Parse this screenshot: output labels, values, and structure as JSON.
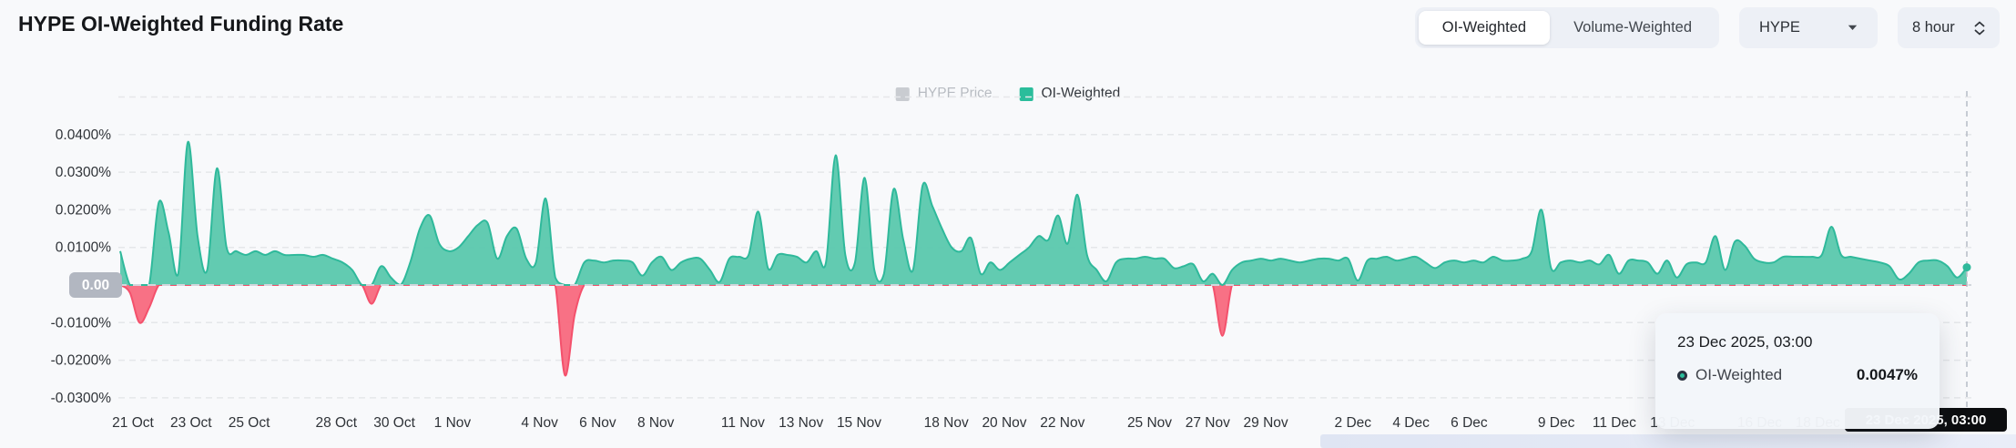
{
  "header": {
    "title": "HYPE OI-Weighted Funding Rate"
  },
  "controls": {
    "mode_tabs": [
      {
        "label": "OI-Weighted",
        "active": true
      },
      {
        "label": "Volume-Weighted",
        "active": false
      }
    ],
    "asset_select": {
      "value": "HYPE"
    },
    "interval_select": {
      "value": "8 hour"
    }
  },
  "legend": [
    {
      "label": "HYPE Price",
      "swatch_color": "#c9ccd1",
      "disabled": true
    },
    {
      "label": "OI-Weighted",
      "swatch_color": "#2abd9b",
      "disabled": false
    }
  ],
  "tooltip": {
    "title": "23 Dec 2025, 03:00",
    "series_label": "OI-Weighted",
    "value": "0.0047%"
  },
  "chart_data": {
    "type": "area",
    "title": "HYPE OI-Weighted Funding Rate",
    "unit": "%",
    "grid": true,
    "legend_position": "top",
    "ylim": [
      -0.035,
      0.052
    ],
    "zero_badge": "0.00",
    "crosshair": {
      "x_label": "23 Dec 2025, 03:00",
      "value": 0.0047
    },
    "x_range": {
      "start": "21 Oct 2025",
      "end": "23 Dec 2025, 03:00",
      "interval": "8 hour"
    },
    "y_ticks": [
      {
        "label": "",
        "value": 0.05
      },
      {
        "label": "0.0400%",
        "value": 0.04
      },
      {
        "label": "0.0300%",
        "value": 0.03
      },
      {
        "label": "0.0200%",
        "value": 0.02
      },
      {
        "label": "0.0100%",
        "value": 0.01
      },
      {
        "label": "0.00",
        "value": 0,
        "badge": true
      },
      {
        "label": "-0.0100%",
        "value": -0.01
      },
      {
        "label": "-0.0200%",
        "value": -0.02
      },
      {
        "label": "-0.0300%",
        "value": -0.03
      }
    ],
    "x_ticks": [
      {
        "label": "21 Oct",
        "day": 0
      },
      {
        "label": "23 Oct",
        "day": 2
      },
      {
        "label": "25 Oct",
        "day": 4
      },
      {
        "label": "28 Oct",
        "day": 7
      },
      {
        "label": "30 Oct",
        "day": 9
      },
      {
        "label": "1 Nov",
        "day": 11
      },
      {
        "label": "4 Nov",
        "day": 14
      },
      {
        "label": "6 Nov",
        "day": 16
      },
      {
        "label": "8 Nov",
        "day": 18
      },
      {
        "label": "11 Nov",
        "day": 21
      },
      {
        "label": "13 Nov",
        "day": 23
      },
      {
        "label": "15 Nov",
        "day": 25
      },
      {
        "label": "18 Nov",
        "day": 28
      },
      {
        "label": "20 Nov",
        "day": 30
      },
      {
        "label": "22 Nov",
        "day": 32
      },
      {
        "label": "25 Nov",
        "day": 35
      },
      {
        "label": "27 Nov",
        "day": 37
      },
      {
        "label": "29 Nov",
        "day": 39
      },
      {
        "label": "2 Dec",
        "day": 42
      },
      {
        "label": "4 Dec",
        "day": 44
      },
      {
        "label": "6 Dec",
        "day": 46
      },
      {
        "label": "9 Dec",
        "day": 49
      },
      {
        "label": "11 Dec",
        "day": 51
      },
      {
        "label": "13 Dec",
        "day": 53
      },
      {
        "label": "16 Dec",
        "day": 56
      },
      {
        "label": "18 Dec",
        "day": 58
      }
    ],
    "series": [
      {
        "name": "OI-Weighted",
        "values": [
          0.009,
          -0.002,
          -0.01,
          -0.006,
          0.022,
          0.014,
          0.003,
          0.038,
          0.013,
          0.004,
          0.031,
          0.01,
          0.009,
          0.008,
          0.009,
          0.008,
          0.009,
          0.008,
          0.008,
          0.008,
          0.0075,
          0.008,
          0.007,
          0.006,
          0.004,
          0.0,
          -0.005,
          0.005,
          0.002,
          0.0,
          0.006,
          0.015,
          0.0185,
          0.011,
          0.009,
          0.01,
          0.013,
          0.016,
          0.0165,
          0.007,
          0.013,
          0.015,
          0.007,
          0.006,
          0.023,
          0.002,
          -0.024,
          -0.008,
          0.006,
          0.0065,
          0.006,
          0.0065,
          0.0065,
          0.006,
          0.0025,
          0.006,
          0.0075,
          0.004,
          0.006,
          0.007,
          0.007,
          0.004,
          0.0008,
          0.007,
          0.0075,
          0.008,
          0.0195,
          0.0045,
          0.008,
          0.008,
          0.0075,
          0.006,
          0.009,
          0.006,
          0.0345,
          0.008,
          0.006,
          0.0285,
          0.004,
          0.003,
          0.0255,
          0.012,
          0.004,
          0.0265,
          0.021,
          0.015,
          0.01,
          0.009,
          0.0125,
          0.003,
          0.006,
          0.004,
          0.006,
          0.008,
          0.01,
          0.013,
          0.012,
          0.0185,
          0.011,
          0.024,
          0.008,
          0.004,
          0.001,
          0.006,
          0.007,
          0.007,
          0.0075,
          0.007,
          0.007,
          0.0045,
          0.005,
          0.0055,
          0.001,
          0.003,
          -0.0135,
          0.004,
          0.006,
          0.0065,
          0.007,
          0.0065,
          0.007,
          0.0065,
          0.006,
          0.0065,
          0.007,
          0.007,
          0.0065,
          0.007,
          0.0012,
          0.0065,
          0.007,
          0.0075,
          0.0065,
          0.007,
          0.0075,
          0.006,
          0.0045,
          0.006,
          0.0065,
          0.006,
          0.0065,
          0.006,
          0.0075,
          0.0065,
          0.0065,
          0.007,
          0.009,
          0.02,
          0.0045,
          0.006,
          0.0065,
          0.006,
          0.0065,
          0.0055,
          0.008,
          0.003,
          0.0065,
          0.0065,
          0.006,
          0.003,
          0.0065,
          0.002,
          0.0055,
          0.006,
          0.006,
          0.013,
          0.004,
          0.0115,
          0.0105,
          0.007,
          0.006,
          0.006,
          0.0075,
          0.0075,
          0.0075,
          0.0075,
          0.008,
          0.0155,
          0.008,
          0.0075,
          0.007,
          0.0065,
          0.006,
          0.005,
          0.0015,
          0.003,
          0.006,
          0.0065,
          0.0065,
          0.005,
          0.002,
          0.0047
        ]
      },
      {
        "name": "HYPE Price",
        "disabled": true,
        "values": []
      }
    ],
    "colors": {
      "positive_fill": "#5cc9ae",
      "positive_stroke": "#2fb99b",
      "negative_fill": "#f8697e",
      "negative_stroke": "#f4516c",
      "grid": "#e5e7ea",
      "zero_line": "#d2d6dc",
      "crosshair": "#b6bcc6",
      "axis_text": "#2f3338",
      "zero_badge_bg": "#b2b7c1",
      "date_badge_bg": "#0c0d0f"
    }
  }
}
